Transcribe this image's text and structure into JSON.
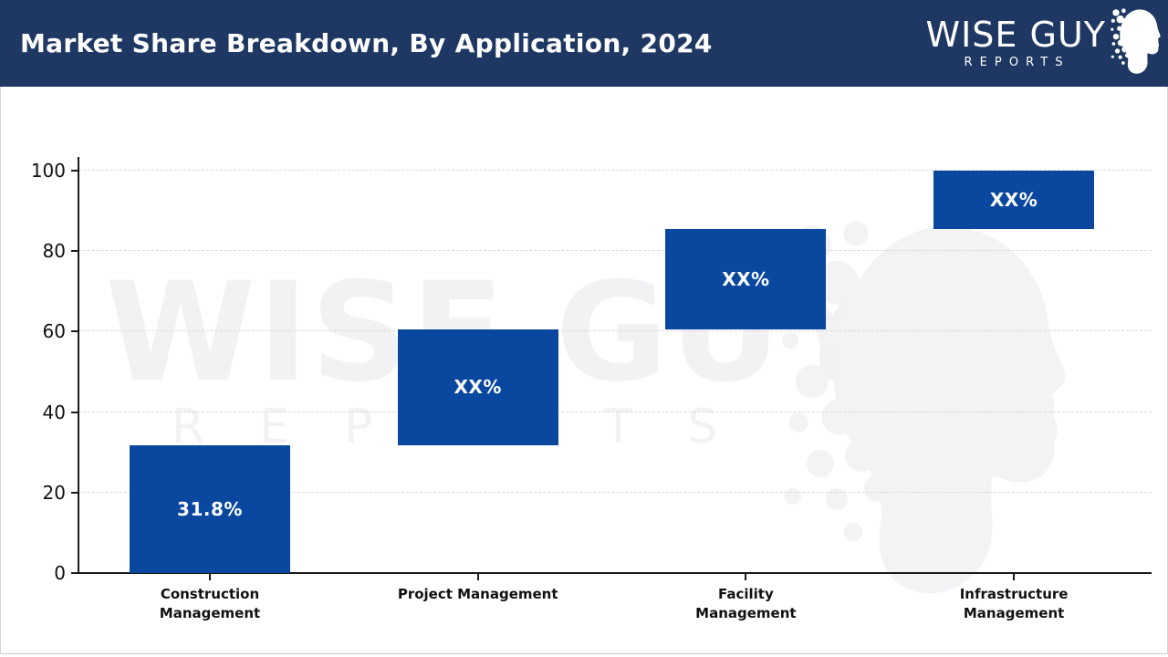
{
  "header": {
    "title": "Market Share Breakdown, By Application, 2024",
    "logo": {
      "name": "WISE GUY",
      "tagline": "REPORTS"
    }
  },
  "watermark": {
    "line1": "WISE GUY",
    "line2": "REPORTS"
  },
  "chart_data": {
    "type": "bar",
    "subtype": "waterfall",
    "title": "Market Share Breakdown, By Application, 2024",
    "categories": [
      "Construction Management",
      "Project Management",
      "Facility Management",
      "Infrastructure Management"
    ],
    "category_lines": [
      [
        "Construction",
        "Management"
      ],
      [
        "Project Management"
      ],
      [
        "Facility",
        "Management"
      ],
      [
        "Infrastructure",
        "Management"
      ]
    ],
    "segments": [
      {
        "category": "Construction Management",
        "start": 0,
        "end": 31.8,
        "label": "31.8%"
      },
      {
        "category": "Project Management",
        "start": 31.8,
        "end": 60.5,
        "label": "XX%"
      },
      {
        "category": "Facility Management",
        "start": 60.5,
        "end": 85.6,
        "label": "XX%"
      },
      {
        "category": "Infrastructure Management",
        "start": 85.6,
        "end": 100,
        "label": "XX%"
      }
    ],
    "yticks": [
      0,
      20,
      40,
      60,
      80,
      100
    ],
    "ylim": [
      0,
      103.5
    ],
    "xlabel": "",
    "ylabel": "",
    "legend": null,
    "grid": {
      "horizontal": true,
      "style": "dashed",
      "color": "#d9d9d9"
    },
    "colors": {
      "bar": "#0a479f",
      "bar_label": "#ffffff",
      "axis": "#1a1a1a",
      "tick_label": "#111111",
      "header_bg": "#1f3863",
      "watermark": "#f2f2f4"
    }
  }
}
